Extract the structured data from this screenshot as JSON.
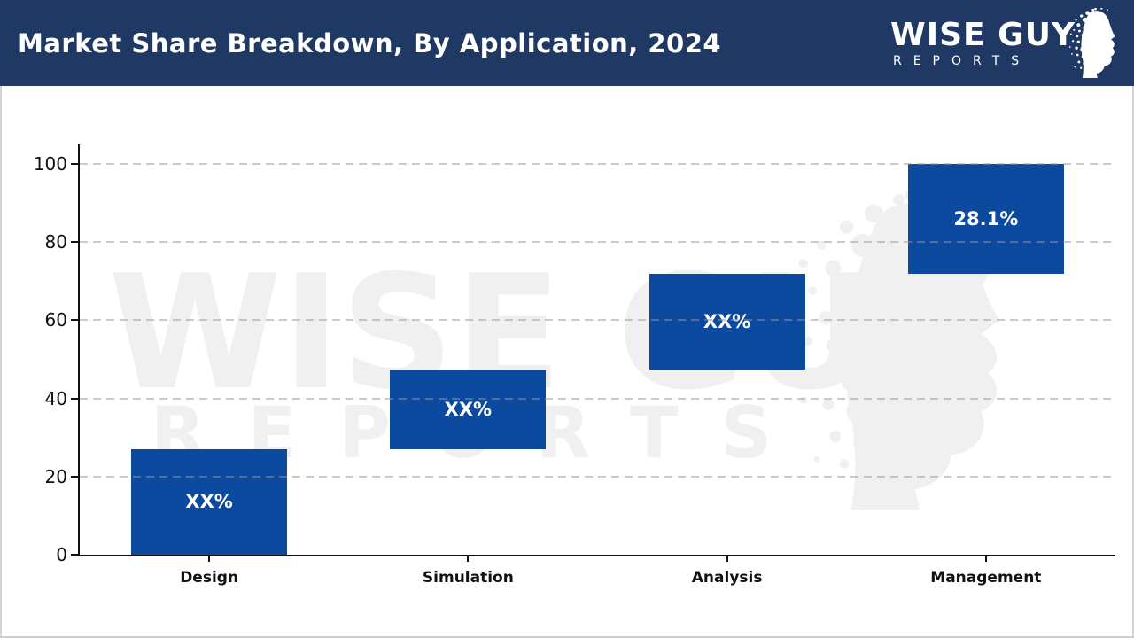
{
  "header": {
    "title": "Market Share Breakdown, By Application, 2024",
    "logo": {
      "wordmark": "WISE GUY",
      "subtext": "REPORTS"
    }
  },
  "watermark": {
    "wordmark": "WISE GUY",
    "subtext": "REPORTS"
  },
  "colors": {
    "header_bg": "#1f3864",
    "bar": "#0c4aa0",
    "axis": "#111111",
    "grid": "#d9d9d9",
    "bar_label": "#ffffff",
    "watermark": "#f0f0f0",
    "frame_border": "#d3d6d9"
  },
  "chart_data": {
    "type": "bar",
    "subtype": "waterfall",
    "title": "Market Share Breakdown, By Application, 2024",
    "categories": [
      "Design",
      "Simulation",
      "Analysis",
      "Management"
    ],
    "segments": [
      {
        "category": "Design",
        "start": 0,
        "end": 27,
        "label": "XX%"
      },
      {
        "category": "Simulation",
        "start": 27,
        "end": 47.5,
        "label": "XX%"
      },
      {
        "category": "Analysis",
        "start": 47.5,
        "end": 71.9,
        "label": "XX%"
      },
      {
        "category": "Management",
        "start": 71.9,
        "end": 100,
        "label": "28.1%"
      }
    ],
    "yticks": [
      0,
      20,
      40,
      60,
      80,
      100
    ],
    "ylim": [
      0,
      105
    ],
    "xlabel": "",
    "ylabel": "",
    "grid": "horizontal-dashed",
    "legend": "none"
  }
}
